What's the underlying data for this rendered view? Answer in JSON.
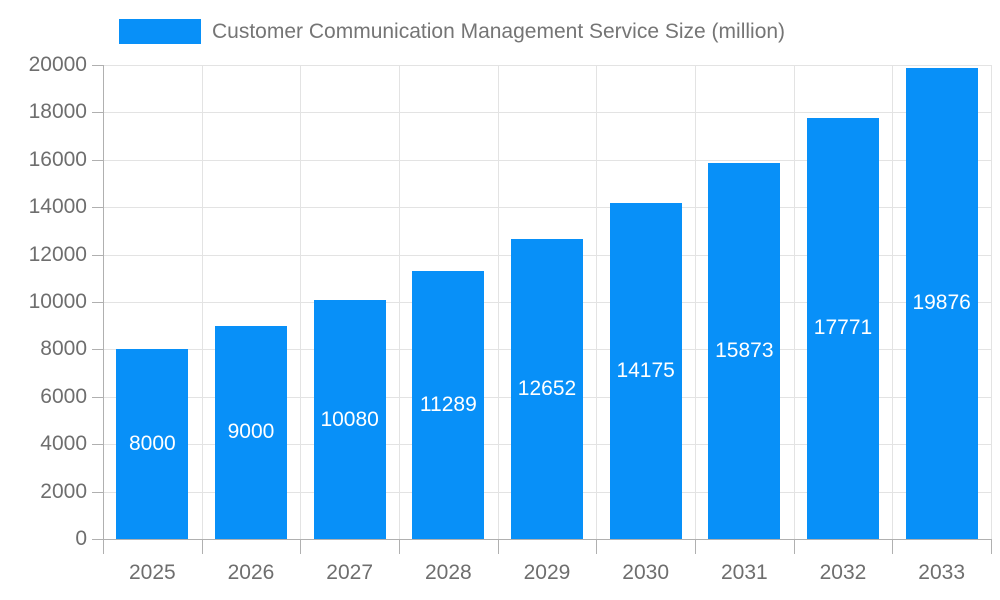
{
  "chart_data": {
    "type": "bar",
    "title": "Customer Communication Management Service Size (million)",
    "categories": [
      "2025",
      "2026",
      "2027",
      "2028",
      "2029",
      "2030",
      "2031",
      "2032",
      "2033"
    ],
    "values": [
      8000,
      9000,
      10080,
      11289,
      12652,
      14175,
      15873,
      17771,
      19876
    ],
    "xlabel": "",
    "ylabel": "",
    "ylim": [
      0,
      20000
    ],
    "ytick_step": 2000,
    "ytick_labels": [
      "0",
      "2000",
      "4000",
      "6000",
      "8000",
      "10000",
      "12000",
      "14000",
      "16000",
      "18000",
      "20000"
    ],
    "grid": true,
    "legend_position": "top-left",
    "value_labels_shown": true,
    "colors": {
      "bar": "#0890F8",
      "bar_value_text": "#ffffff",
      "gridline": "#e3e3e3",
      "axis_line": "#b0b0b0",
      "tick_text": "#6e6e6e",
      "title_text": "#757575",
      "background": "#ffffff"
    }
  }
}
